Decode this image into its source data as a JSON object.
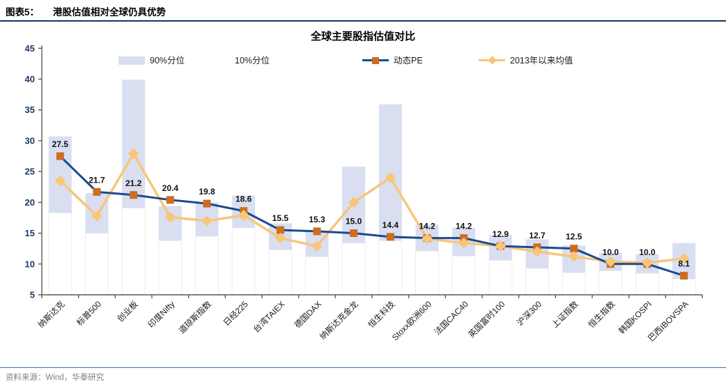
{
  "header": {
    "label": "图表5：",
    "title": "港股估值相对全球仍具优势"
  },
  "footer": {
    "source": "资料来源：Wind，华泰研究"
  },
  "colors": {
    "bar_fill": "#d9dff1",
    "under_bar_border": "#ededed",
    "pe_line": "#1b4a8e",
    "pe_marker": "#cd6d1f",
    "mean_line": "#f8c679",
    "axis": "#595959",
    "axis_label": "#1f3864",
    "header_rule": "#17375e",
    "footer_rule": "#4472a8"
  },
  "chart_data": {
    "type": "bar",
    "subtype": "range-bar-with-lines",
    "title": "全球主要股指估值对比",
    "xlabel": "",
    "ylabel": "",
    "ylim": [
      5,
      45
    ],
    "ytick_step": 5,
    "grid": false,
    "legend_position": "top",
    "legend": [
      {
        "label": "90%分位"
      },
      {
        "label": "10%分位"
      },
      {
        "label": "动态PE"
      },
      {
        "label": "2013年以来均值"
      }
    ],
    "categories": [
      "纳斯达克",
      "标普500",
      "创业板",
      "印度Nifty",
      "道琼斯指数",
      "日经225",
      "台湾TAIEX",
      "德国DAX",
      "纳斯达克金龙",
      "恒生科技",
      "Stoxx欧洲600",
      "法国CAC40",
      "英国富时100",
      "沪深300",
      "上证指数",
      "恒生指数",
      "韩国KOSPI",
      "巴西IBOVSPA"
    ],
    "series": [
      {
        "name": "10%-90%分位区间",
        "type": "range-bar",
        "low": [
          18.3,
          15.0,
          19.1,
          13.8,
          14.5,
          15.9,
          12.3,
          11.2,
          13.4,
          13.8,
          12.1,
          11.3,
          10.6,
          9.3,
          8.6,
          8.9,
          8.5,
          7.6
        ],
        "high": [
          30.7,
          21.5,
          39.9,
          19.4,
          20.0,
          21.1,
          16.6,
          15.3,
          25.8,
          35.9,
          16.4,
          15.9,
          14.7,
          14.0,
          13.0,
          11.8,
          11.6,
          13.4
        ]
      },
      {
        "name": "动态PE",
        "type": "line",
        "values": [
          27.5,
          21.7,
          21.2,
          20.4,
          19.8,
          18.6,
          15.5,
          15.3,
          15.0,
          14.4,
          14.2,
          14.2,
          12.9,
          12.7,
          12.5,
          10.0,
          10.0,
          8.1
        ],
        "data_labels": [
          "27.5",
          "21.7",
          "21.2",
          "20.4",
          "19.8",
          "18.6",
          "15.5",
          "15.3",
          "15.0",
          "14.4",
          "14.2",
          "14.2",
          "12.9",
          "12.7",
          "12.5",
          "10.0",
          "10.0",
          "8.1"
        ]
      },
      {
        "name": "2013年以来均值",
        "type": "line",
        "values": [
          23.5,
          17.8,
          27.9,
          17.6,
          17.0,
          17.9,
          14.2,
          12.9,
          20.0,
          24.0,
          14.1,
          13.4,
          12.9,
          12.0,
          11.2,
          10.4,
          10.2,
          10.9
        ]
      }
    ]
  }
}
